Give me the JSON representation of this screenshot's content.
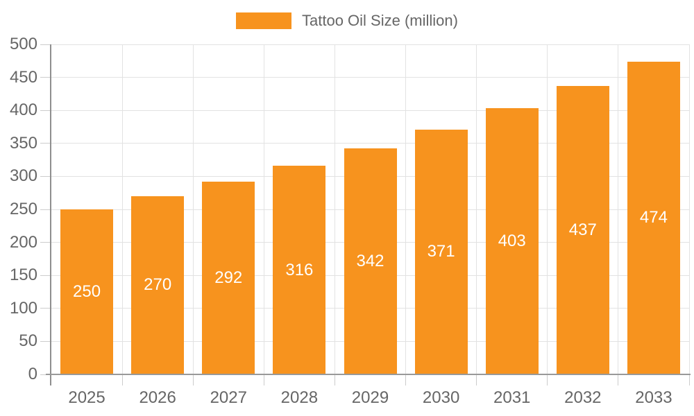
{
  "chart_data": {
    "type": "bar",
    "title": "Tattoo Oil Size (million)",
    "legend_position": "top-center",
    "categories": [
      "2025",
      "2026",
      "2027",
      "2028",
      "2029",
      "2030",
      "2031",
      "2032",
      "2033"
    ],
    "series": [
      {
        "name": "Tattoo Oil Size (million)",
        "values": [
          250,
          270,
          292,
          316,
          342,
          371,
          403,
          437,
          474
        ]
      }
    ],
    "value_labels_shown": true,
    "xlabel": "",
    "ylabel": "",
    "ylim": [
      0,
      500
    ],
    "yticks": [
      0,
      50,
      100,
      150,
      200,
      250,
      300,
      350,
      400,
      450,
      500
    ],
    "grid": true,
    "colors": {
      "bar": "#F7931E",
      "value_label": "#FFFFFF",
      "axis_text": "#666666",
      "legend_text": "#666666",
      "gridline": "#E2E2E2",
      "tick": "#CCCCCC",
      "axis_line": "#999999",
      "background": "#FFFFFF"
    }
  }
}
